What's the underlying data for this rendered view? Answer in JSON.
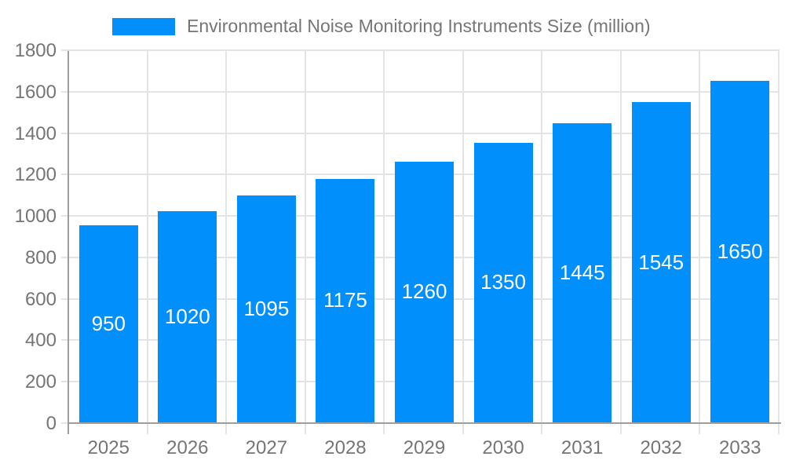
{
  "chart_data": {
    "type": "bar",
    "title": "Environmental Noise Monitoring Instruments Size (million)",
    "legend": {
      "position": "top",
      "entries": [
        "Environmental Noise Monitoring Instruments Size (million)"
      ]
    },
    "categories": [
      "2025",
      "2026",
      "2027",
      "2028",
      "2029",
      "2030",
      "2031",
      "2032",
      "2033"
    ],
    "values": [
      950,
      1020,
      1095,
      1175,
      1260,
      1350,
      1445,
      1545,
      1650
    ],
    "data_labels_shown": true,
    "xlabel": "",
    "ylabel": "",
    "ylim": [
      0,
      1800
    ],
    "yticks": [
      0,
      200,
      400,
      600,
      800,
      1000,
      1200,
      1400,
      1600,
      1800
    ],
    "grid": true
  },
  "colors": {
    "bar": "#008FFB",
    "grid": "#e4e4e4",
    "axis": "#9e9e9e",
    "axis_text": "#757575",
    "title_text": "#757575",
    "value_label": "#ffffff",
    "background": "#ffffff"
  }
}
